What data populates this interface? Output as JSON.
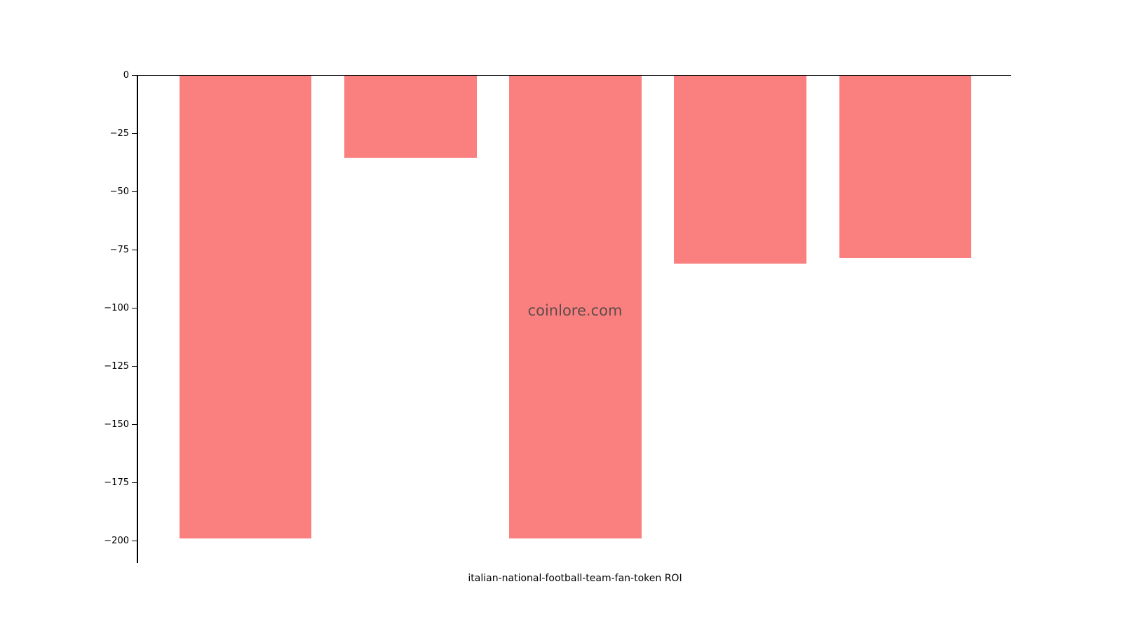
{
  "figure": {
    "background": "#ffffff",
    "watermark": "coinlore.com",
    "xlabel": "italian-national-football-team-fan-token ROI"
  },
  "chart_data": {
    "type": "bar",
    "categories": [
      "",
      "",
      "",
      "",
      ""
    ],
    "values": [
      -198.8,
      -35.4,
      -198.8,
      -80.9,
      -78.5
    ],
    "title": "",
    "xlabel": "italian-national-football-team-fan-token ROI",
    "ylabel": "",
    "ylim": [
      -209,
      0
    ],
    "yticks": [
      0,
      -25,
      -50,
      -75,
      -100,
      -125,
      -150,
      -175,
      -200
    ],
    "ytick_labels": [
      "0",
      "−25",
      "−50",
      "−75",
      "−100",
      "−125",
      "−150",
      "−175",
      "−200"
    ],
    "bar_color": "#fa8080",
    "axis_color": "#000000",
    "grid": false,
    "legend_position": "none",
    "watermark": "coinlore.com"
  }
}
